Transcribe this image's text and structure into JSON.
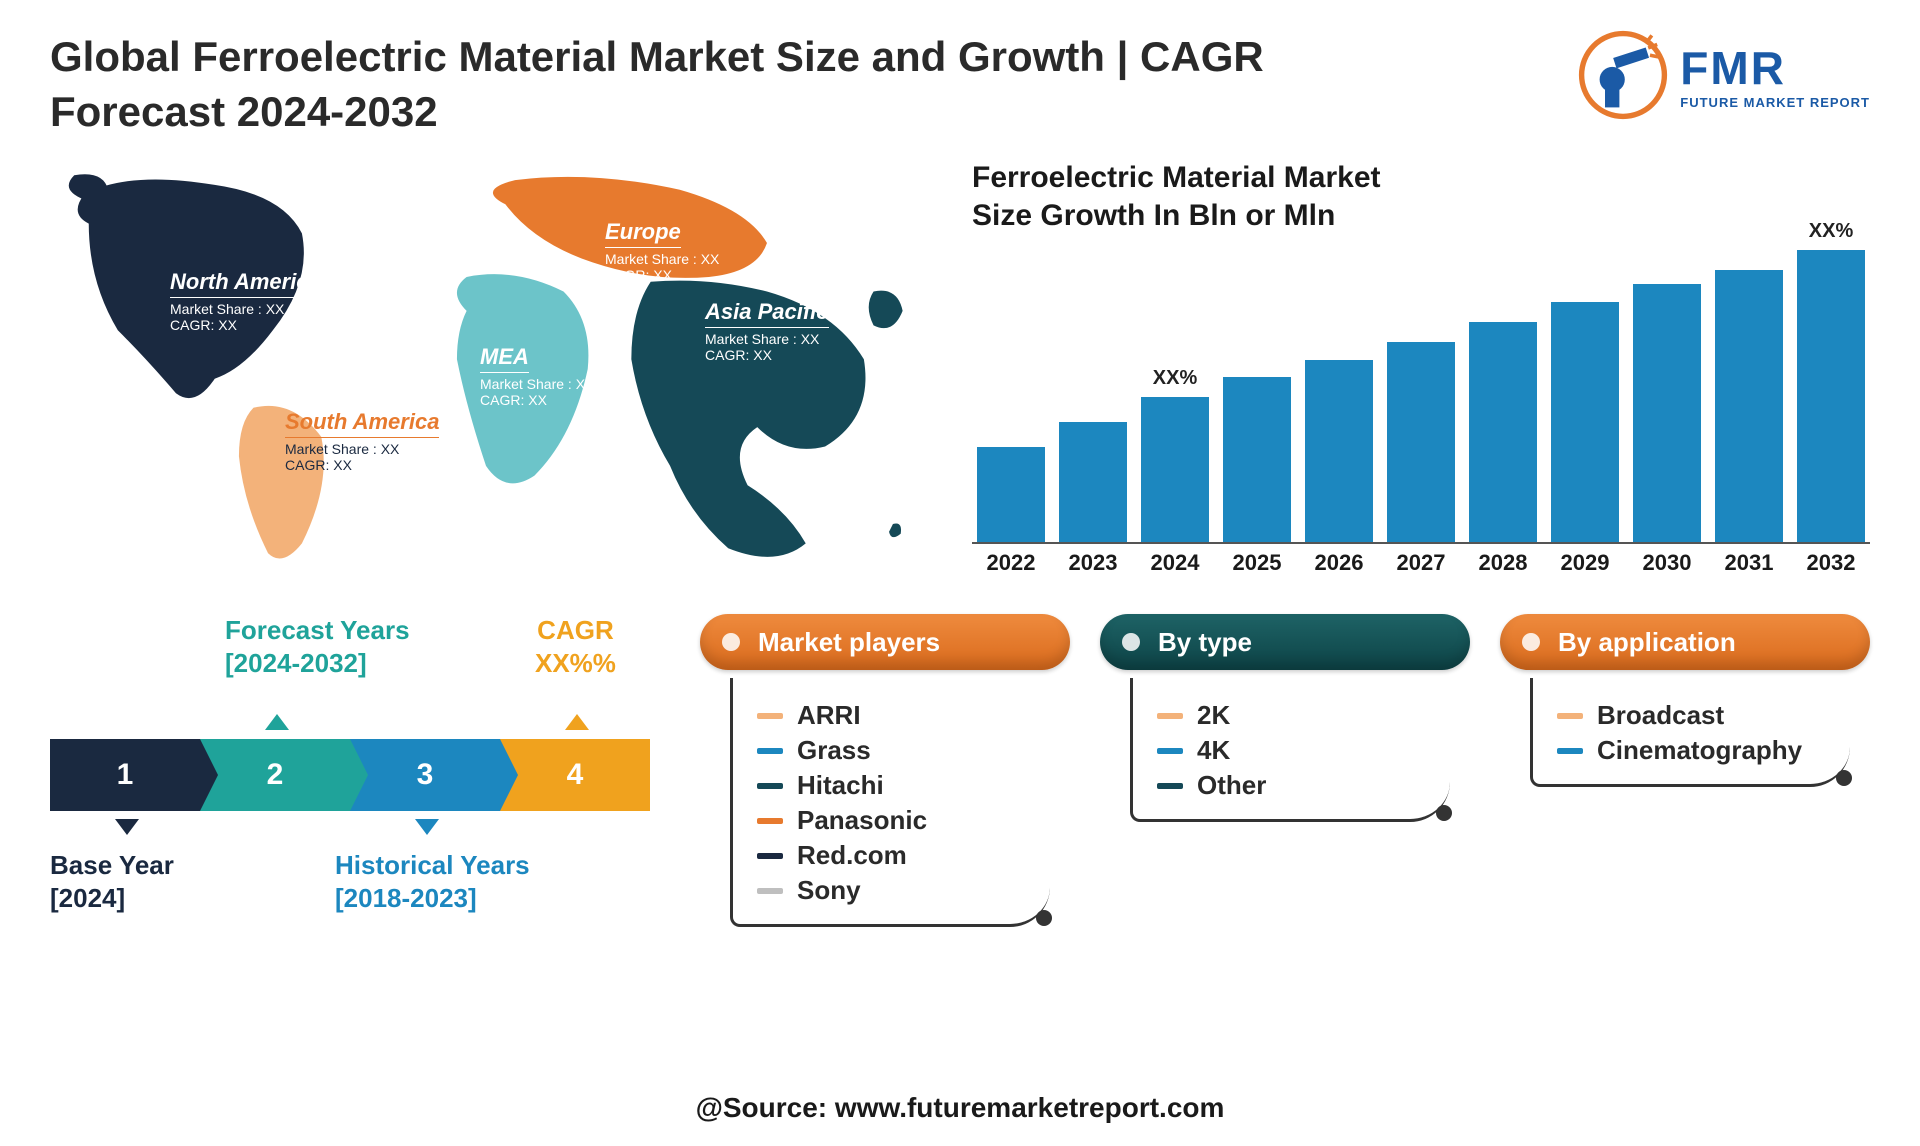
{
  "title": "Global Ferroelectric Material Market Size and Growth | CAGR Forecast 2024-2032",
  "logo": {
    "brand": "FMR",
    "subtitle": "FUTURE MARKET REPORT"
  },
  "map": {
    "regions": [
      {
        "key": "na",
        "name": "North America",
        "share": "Market Share : XX",
        "cagr": "CAGR: XX",
        "color": "#1a2940",
        "label_color": "light"
      },
      {
        "key": "sa",
        "name": "South America",
        "share": "Market Share : XX",
        "cagr": "CAGR: XX",
        "color": "#f3b27a",
        "label_color": "orange"
      },
      {
        "key": "eu",
        "name": "Europe",
        "share": "Market Share : XX",
        "cagr": "CAGR: XX",
        "color": "#e77a2e",
        "label_color": "light"
      },
      {
        "key": "mea",
        "name": "MEA",
        "share": "Market Share : XX",
        "cagr": "CAGR: XX",
        "color": "#6cc4c9",
        "label_color": "light"
      },
      {
        "key": "ap",
        "name": "Asia Pacific",
        "share": "Market Share : XX",
        "cagr": "CAGR: XX",
        "color": "#154957",
        "label_color": "light"
      }
    ]
  },
  "chart": {
    "type": "bar",
    "title": "Ferroelectric Material Market Size Growth In Bln or Mln",
    "categories": [
      "2022",
      "2023",
      "2024",
      "2025",
      "2026",
      "2027",
      "2028",
      "2029",
      "2030",
      "2031",
      "2032"
    ],
    "values": [
      95,
      120,
      145,
      165,
      182,
      200,
      220,
      240,
      258,
      272,
      292
    ],
    "ylim": [
      0,
      300
    ],
    "bar_color": "#1c87bf",
    "annotations": [
      {
        "index": 2,
        "text": "XX%"
      },
      {
        "index": 10,
        "text": "XX%"
      }
    ],
    "axis_color": "#555555",
    "label_fontsize": 22,
    "title_fontsize": 30
  },
  "timeline": {
    "segments": [
      {
        "n": "1",
        "color": "#1a2940"
      },
      {
        "n": "2",
        "color": "#1fa39a"
      },
      {
        "n": "3",
        "color": "#1c87bf"
      },
      {
        "n": "4",
        "color": "#f0a21e"
      }
    ],
    "labels": {
      "forecast": {
        "title": "Forecast Years",
        "range": "[2024-2032]"
      },
      "cagr": {
        "title": "CAGR",
        "value": "XX%%"
      },
      "base": {
        "title": "Base Year",
        "range": "[2024]"
      },
      "hist": {
        "title": "Historical Years",
        "range": "[2018-2023]"
      }
    }
  },
  "pills": {
    "market_players": {
      "title": "Market players",
      "pill_color": "orange",
      "items": [
        {
          "label": "ARRI",
          "color": "#f3b27a"
        },
        {
          "label": "Grass",
          "color": "#1c87bf"
        },
        {
          "label": "Hitachi",
          "color": "#154957"
        },
        {
          "label": "Panasonic",
          "color": "#e77a2e"
        },
        {
          "label": "Red.com",
          "color": "#1a2940"
        },
        {
          "label": "Sony",
          "color": "#bfbfbf"
        }
      ]
    },
    "by_type": {
      "title": "By type",
      "pill_color": "teal",
      "items": [
        {
          "label": "2K",
          "color": "#f3b27a"
        },
        {
          "label": "4K",
          "color": "#1c87bf"
        },
        {
          "label": "Other",
          "color": "#154957"
        }
      ]
    },
    "by_application": {
      "title": "By application",
      "pill_color": "orange",
      "items": [
        {
          "label": "Broadcast",
          "color": "#f3b27a"
        },
        {
          "label": "Cinematography",
          "color": "#1c87bf"
        }
      ]
    }
  },
  "source": "@Source: www.futuremarketreport.com"
}
